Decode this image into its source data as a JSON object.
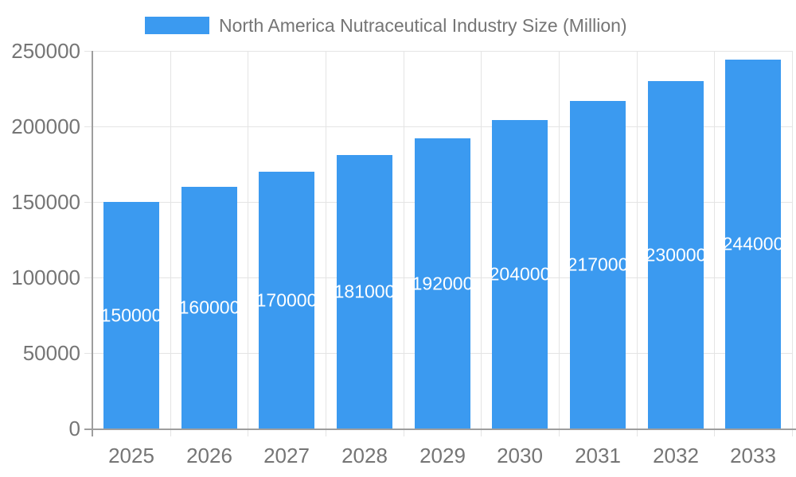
{
  "legend": {
    "label": "North America Nutraceutical Industry Size (Million)",
    "swatch_color": "#3B9AF0"
  },
  "chart_data": {
    "type": "bar",
    "title": "North America Nutraceutical Industry Size (Million)",
    "categories": [
      "2025",
      "2026",
      "2027",
      "2028",
      "2029",
      "2030",
      "2031",
      "2032",
      "2033"
    ],
    "series": [
      {
        "name": "North America Nutraceutical Industry Size (Million)",
        "values": [
          150000,
          160000,
          170000,
          181000,
          192000,
          204000,
          217000,
          230000,
          244000
        ]
      }
    ],
    "bar_labels": [
      "150000",
      "160000",
      "170000",
      "181000",
      "192000",
      "204000",
      "217000",
      "230000",
      "244000"
    ],
    "xlabel": "",
    "ylabel": "",
    "ylim": [
      0,
      250000
    ],
    "yticks": [
      0,
      50000,
      100000,
      150000,
      200000,
      250000
    ],
    "ytick_labels": [
      "0",
      "50000",
      "100000",
      "150000",
      "200000",
      "250000"
    ],
    "grid": true,
    "legend_position": "top",
    "colors": {
      "bar": "#3B9AF0",
      "bar_label_text": "#ffffff",
      "axis_text": "#757575",
      "gridline": "#e4e4e4",
      "axis_line": "#9e9e9e"
    }
  }
}
